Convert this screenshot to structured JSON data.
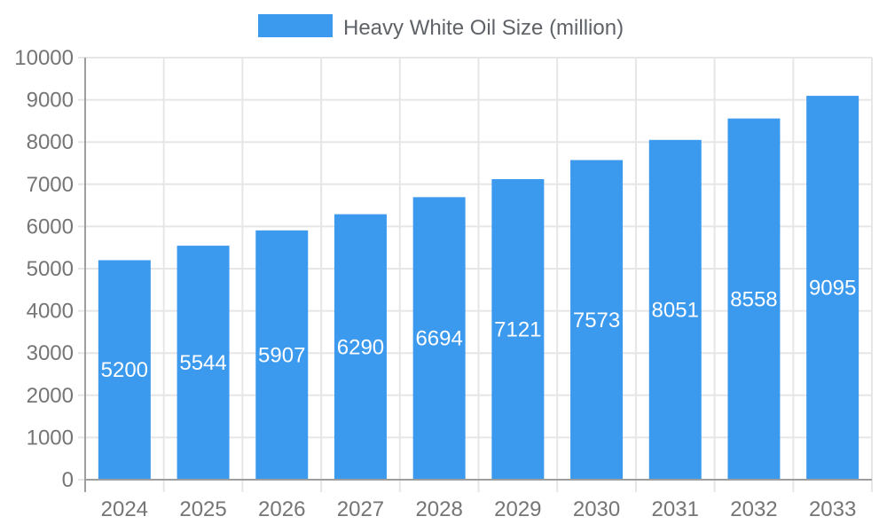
{
  "chart_data": {
    "type": "bar",
    "title": "Heavy White Oil Size (million)",
    "categories": [
      "2024",
      "2025",
      "2026",
      "2027",
      "2028",
      "2029",
      "2030",
      "2031",
      "2032",
      "2033"
    ],
    "values": [
      5200,
      5544,
      5907,
      6290,
      6694,
      7121,
      7573,
      8051,
      8558,
      9095
    ],
    "series": [
      {
        "name": "Heavy White Oil Size (million)",
        "values": [
          5200,
          5544,
          5907,
          6290,
          6694,
          7121,
          7573,
          8051,
          8558,
          9095
        ]
      }
    ],
    "xlabel": "",
    "ylabel": "",
    "ylim": [
      0,
      10000
    ],
    "y_ticks": [
      0,
      1000,
      2000,
      3000,
      4000,
      5000,
      6000,
      7000,
      8000,
      9000,
      10000
    ],
    "grid": true,
    "legend_position": "top",
    "value_labels": "inside-center"
  },
  "colors": {
    "bar": "#3B99EE",
    "grid": "#e6e6e6",
    "axis": "#9e9e9e",
    "tick_text": "#757575",
    "legend_text": "#5f6368",
    "value_label": "#ffffff",
    "background": "#ffffff"
  }
}
